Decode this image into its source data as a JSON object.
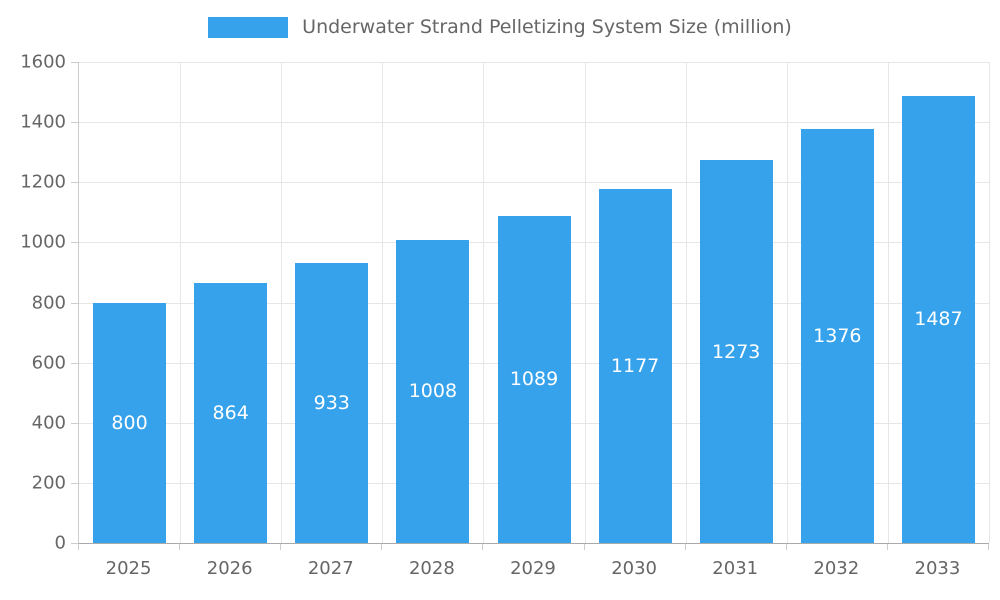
{
  "chart_data": {
    "type": "bar",
    "title": "Underwater Strand Pelletizing System Size (million)",
    "categories": [
      "2025",
      "2026",
      "2027",
      "2028",
      "2029",
      "2030",
      "2031",
      "2032",
      "2033"
    ],
    "values": [
      800,
      864,
      933,
      1008,
      1089,
      1177,
      1273,
      1376,
      1487
    ],
    "xlabel": "",
    "ylabel": "",
    "ylim": [
      0,
      1600
    ],
    "ytick_step": 200,
    "ytick_labels": [
      "0",
      "200",
      "400",
      "600",
      "800",
      "1000",
      "1200",
      "1400",
      "1600"
    ],
    "bar_color": "#36A2EB",
    "value_label_color": "#ffffff",
    "grid": true,
    "legend_position": "top"
  }
}
